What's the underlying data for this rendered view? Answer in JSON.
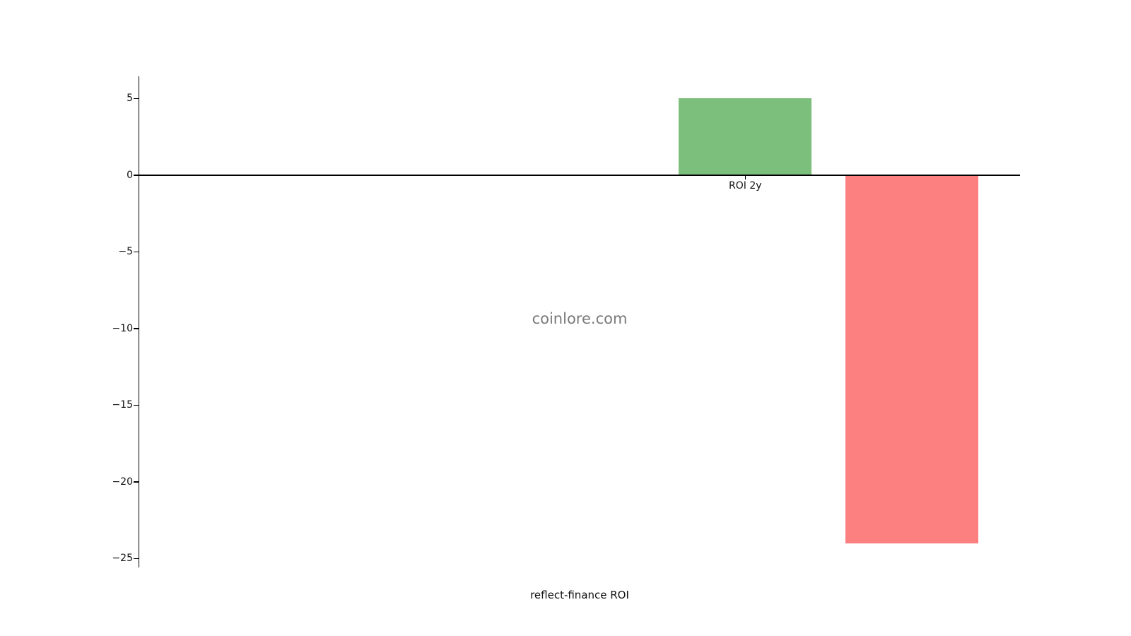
{
  "chart_data": {
    "type": "bar",
    "title": "",
    "categories": [
      "ROI 2y",
      ""
    ],
    "values": [
      5,
      -24
    ],
    "bar_colors": [
      "#7cbe7b",
      "#fd8080"
    ],
    "xlabel": "reflect-finance ROI",
    "ylabel": "",
    "yticks": [
      5,
      0,
      -5,
      -10,
      -15,
      -20,
      -25
    ],
    "ylim": [
      -25.58,
      6.45
    ],
    "grid": false,
    "legend": false,
    "watermark": "coinlore.com",
    "colors": {
      "positive_bar": "#7cbe7b",
      "negative_bar": "#fd8080",
      "axis": "#000000",
      "tick_text": "#111111",
      "watermark": "#7a7a7a",
      "background": "#ffffff"
    }
  }
}
